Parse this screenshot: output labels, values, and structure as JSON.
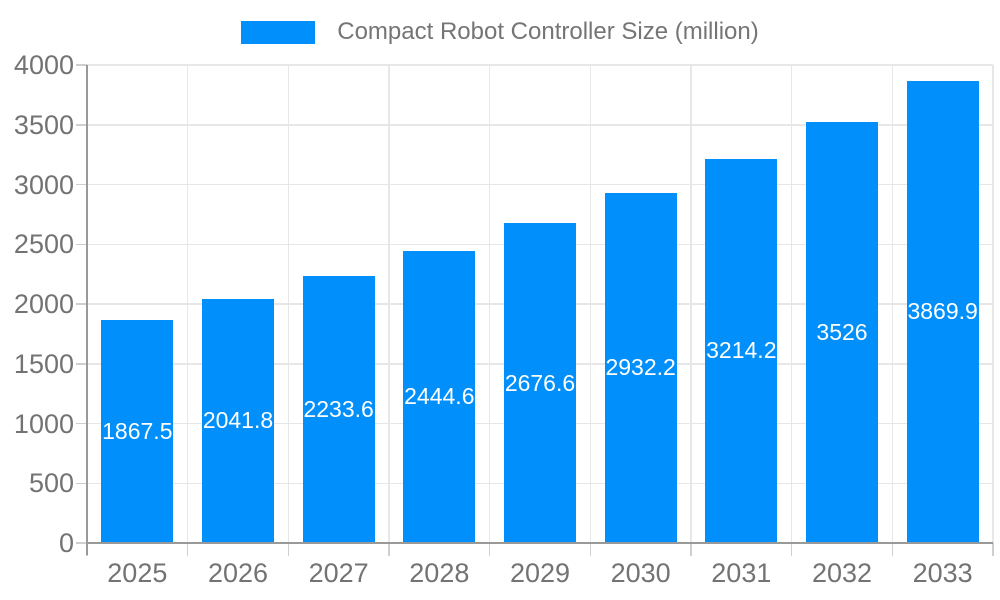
{
  "legend": {
    "label": "Compact Robot Controller Size (million)"
  },
  "chart_data": {
    "type": "bar",
    "title": "Compact Robot Controller Size (million)",
    "categories": [
      "2025",
      "2026",
      "2027",
      "2028",
      "2029",
      "2030",
      "2031",
      "2032",
      "2033"
    ],
    "series": [
      {
        "name": "Compact Robot Controller Size (million)",
        "values": [
          1867.5,
          2041.8,
          2233.6,
          2444.6,
          2676.6,
          2932.2,
          3214.2,
          3526,
          3869.9
        ]
      }
    ],
    "data_labels": [
      "1867.5",
      "2041.8",
      "2233.6",
      "2444.6",
      "2676.6",
      "2932.2",
      "3214.2",
      "3526",
      "3869.9"
    ],
    "xlabel": "",
    "ylabel": "",
    "ylim": [
      0,
      4000
    ],
    "yticks": [
      0,
      500,
      1000,
      1500,
      2000,
      2500,
      3000,
      3500,
      4000
    ],
    "grid": true,
    "legend_position": "top",
    "colors": {
      "bar": "#008FFB",
      "axis_line": "#999999",
      "gridline": "#e7e7e7",
      "tick": "#cfcfcf",
      "axis_text": "#737373",
      "data_label_text": "#ffffff",
      "background": "#ffffff"
    }
  }
}
